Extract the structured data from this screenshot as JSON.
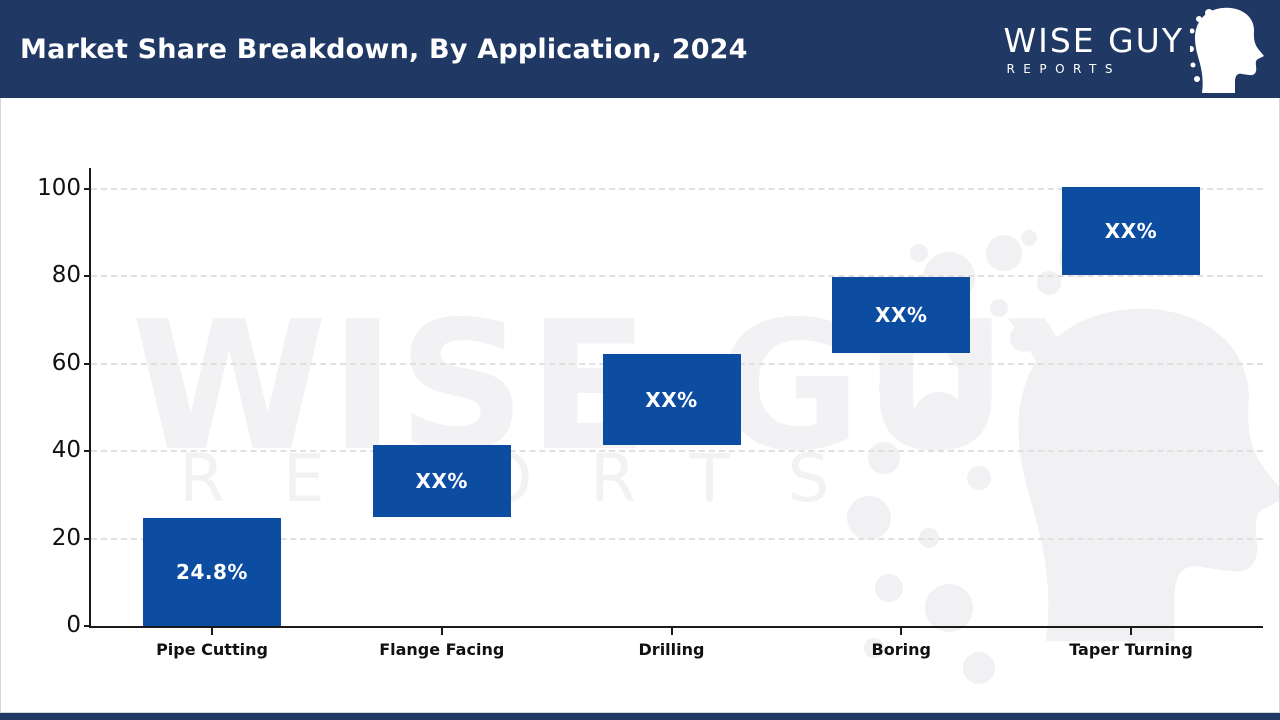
{
  "header": {
    "title": "Market Share Breakdown, By Application, 2024",
    "logo": {
      "name": "WISE GUY",
      "tagline": "REPORTS"
    }
  },
  "watermark": {
    "name": "WISE GUY",
    "tagline": "REPORTS"
  },
  "chart_data": {
    "type": "bar",
    "variant": "floating-waterfall",
    "title": "Market Share Breakdown, By Application, 2024",
    "categories": [
      "Pipe Cutting",
      "Flange Facing",
      "Drilling",
      "Boring",
      "Taper Turning"
    ],
    "segments": [
      {
        "category": "Pipe Cutting",
        "start": 0,
        "end": 24.8,
        "label": "24.8%"
      },
      {
        "category": "Flange Facing",
        "start": 24.9,
        "end": 41.3,
        "label": "XX%"
      },
      {
        "category": "Drilling",
        "start": 41.4,
        "end": 62.1,
        "label": "XX%"
      },
      {
        "category": "Boring",
        "start": 62.4,
        "end": 79.8,
        "label": "XX%"
      },
      {
        "category": "Taper Turning",
        "start": 80.2,
        "end": 100.4,
        "label": "XX%"
      }
    ],
    "y_ticks": [
      0,
      20,
      40,
      60,
      80,
      100
    ],
    "ylim": [
      0,
      105
    ],
    "xlabel": "",
    "ylabel": "",
    "grid": "horizontal-dashed",
    "legend": "none",
    "bar_color": "#0c4da2",
    "bar_label_color": "#ffffff",
    "axis_color": "#1a1a1a",
    "grid_color": "#e0e0e0"
  },
  "colors": {
    "header_bg": "#203864",
    "footer_bg": "#203864",
    "card_bg": "#ffffff",
    "card_border": "#d8d8d8",
    "watermark": "#f2f2f4"
  }
}
